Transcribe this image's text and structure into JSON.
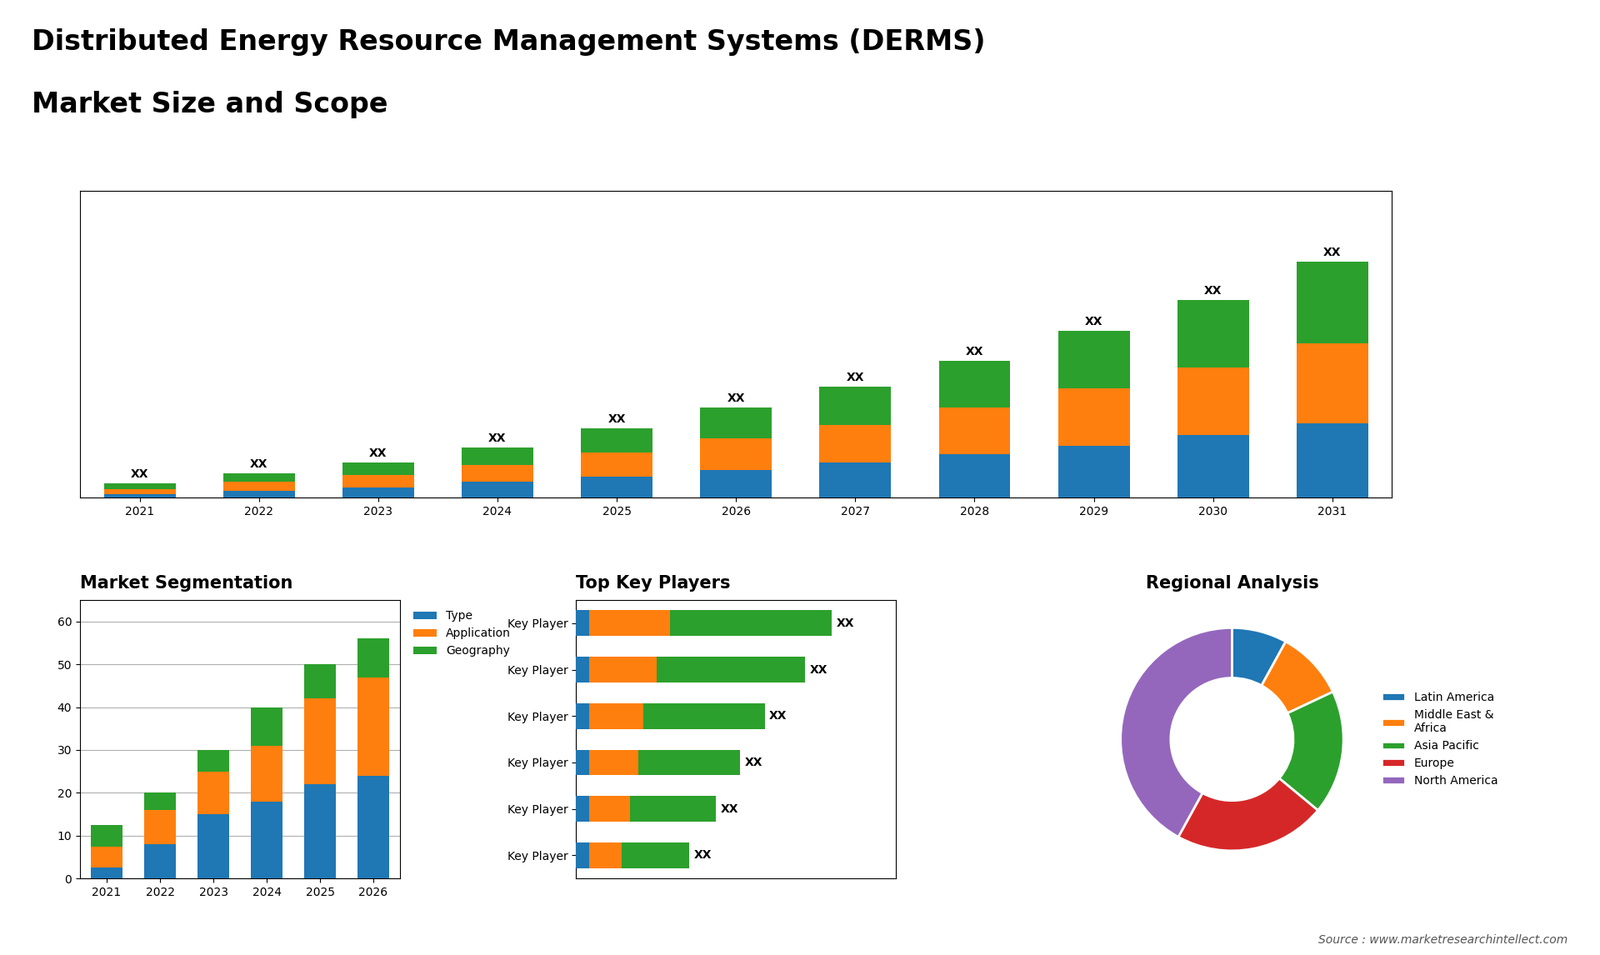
{
  "chart_data": [
    {
      "type": "bar",
      "stacked": true,
      "title": "Distributed Energy Resource Management Systems (DERMS)",
      "subtitle": "Market Size and Scope",
      "annotations": [
        "Source : www.marketresearchintellect.com"
      ],
      "categories": [
        "2021",
        "2022",
        "2023",
        "2024",
        "2025",
        "2026",
        "2027",
        "2028",
        "2029",
        "2030",
        "2031"
      ],
      "series": [
        {
          "values": [
            2,
            4,
            6,
            9,
            12,
            16,
            20,
            25,
            30,
            36,
            43
          ]
        },
        {
          "values": [
            3,
            5,
            7,
            10,
            14,
            18,
            22,
            27,
            33,
            39,
            46
          ]
        },
        {
          "values": [
            3,
            5,
            7,
            10,
            14,
            18,
            22,
            27,
            33,
            39,
            47
          ],
          "value_labels": [
            "XX",
            "XX",
            "XX",
            "XX",
            "XX",
            "XX",
            "XX",
            "XX",
            "XX",
            "XX",
            "XX"
          ]
        }
      ],
      "ylim": [
        0,
        176.8
      ],
      "yticks": [],
      "tick_labels": "x"
    },
    {
      "type": "bar",
      "stacked": true,
      "title": "Market Segmentation",
      "categories": [
        "2021",
        "2022",
        "2023",
        "2024",
        "2025",
        "2026"
      ],
      "series": [
        {
          "name": "Type",
          "values": [
            2.5,
            8,
            15,
            18,
            22,
            24
          ]
        },
        {
          "name": "Application",
          "values": [
            5,
            8,
            10,
            13,
            20,
            23
          ]
        },
        {
          "name": "Geography",
          "values": [
            5,
            4,
            5,
            9,
            8,
            9
          ]
        }
      ],
      "ylim": [
        0,
        65
      ],
      "yticks": [
        0,
        10,
        20,
        30,
        40,
        50,
        60
      ],
      "grid": true,
      "legend": "upper left"
    },
    {
      "type": "bar",
      "stacked": true,
      "orientation": "horizontal",
      "title": "Top Key Players",
      "categories": [
        "Key Player",
        "Key Player",
        "Key Player",
        "Key Player",
        "Key Player",
        "Key Player"
      ],
      "series": [
        {
          "values": [
            0.5,
            0.5,
            0.5,
            0.5,
            0.5,
            0.5
          ]
        },
        {
          "values": [
            3.0,
            2.5,
            2.0,
            1.8,
            1.5,
            1.2
          ]
        },
        {
          "values": [
            6.0,
            5.5,
            4.5,
            3.8,
            3.2,
            2.5
          ],
          "value_labels": [
            "XX",
            "XX",
            "XX",
            "XX",
            "XX",
            "XX"
          ]
        }
      ],
      "xlim": [
        0,
        11.875
      ],
      "xticks": [],
      "tick_labels": "y"
    },
    {
      "type": "pie",
      "title": "Regional Analysis",
      "categories": [
        "Latin America",
        "Middle East &\nAfrica",
        "Asia Pacific",
        "Europe",
        "North America"
      ],
      "values": [
        8,
        10,
        18,
        22,
        42
      ],
      "legend": "center left"
    }
  ]
}
